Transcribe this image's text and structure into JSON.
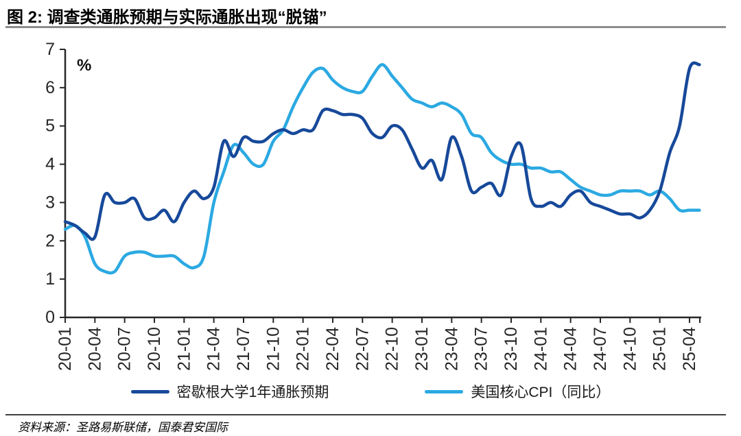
{
  "page": {
    "title": "图 2: 调查类通胀预期与实际通胀出现“脱锚”",
    "source_note": "资料来源：圣路易斯联储，国泰君安国际"
  },
  "chart_data": {
    "type": "line",
    "title": "调查类通胀预期与实际通胀出现“脱锚”",
    "unit_label": "%",
    "xlabel": "",
    "ylabel": "%",
    "ylim": [
      0,
      7
    ],
    "yticks": [
      0,
      1,
      2,
      3,
      4,
      5,
      6,
      7
    ],
    "grid": false,
    "legend_position": "bottom",
    "axis_color": "#262626",
    "x_start": "2020-01",
    "x_end": "2025-05",
    "x_tick_interval_months": 3,
    "x_tick_labels": [
      "20-01",
      "20-04",
      "20-07",
      "20-10",
      "21-01",
      "21-04",
      "21-07",
      "21-10",
      "22-01",
      "22-04",
      "22-07",
      "22-10",
      "23-01",
      "23-04",
      "23-07",
      "23-10",
      "24-01",
      "24-04",
      "24-07",
      "24-10",
      "25-01",
      "25-04"
    ],
    "series": [
      {
        "name": "密歇根大学1年通胀预期",
        "color": "#17499A",
        "values": [
          2.5,
          2.4,
          2.2,
          2.1,
          3.2,
          3.0,
          3.0,
          3.1,
          2.6,
          2.6,
          2.8,
          2.5,
          3.0,
          3.3,
          3.1,
          3.4,
          4.6,
          4.2,
          4.7,
          4.6,
          4.6,
          4.8,
          4.9,
          4.8,
          4.9,
          4.9,
          5.4,
          5.4,
          5.3,
          5.3,
          5.2,
          4.8,
          4.7,
          5.0,
          4.9,
          4.4,
          3.9,
          4.1,
          3.6,
          4.7,
          4.2,
          3.3,
          3.4,
          3.5,
          3.2,
          4.2,
          4.5,
          3.1,
          2.9,
          3.0,
          2.9,
          3.2,
          3.3,
          3.0,
          2.9,
          2.8,
          2.7,
          2.7,
          2.6,
          2.8,
          3.3,
          4.3,
          5.0,
          6.5,
          6.6
        ]
      },
      {
        "name": "美国核心CPI（同比）",
        "color": "#2BA9E2",
        "values": [
          2.3,
          2.4,
          2.1,
          1.4,
          1.2,
          1.2,
          1.6,
          1.7,
          1.7,
          1.6,
          1.6,
          1.6,
          1.4,
          1.3,
          1.6,
          3.0,
          3.8,
          4.5,
          4.3,
          4.0,
          4.0,
          4.6,
          4.9,
          5.5,
          6.0,
          6.4,
          6.5,
          6.2,
          6.0,
          5.9,
          5.9,
          6.3,
          6.6,
          6.3,
          6.0,
          5.7,
          5.6,
          5.5,
          5.6,
          5.5,
          5.3,
          4.8,
          4.7,
          4.3,
          4.1,
          4.0,
          4.0,
          3.9,
          3.9,
          3.8,
          3.8,
          3.6,
          3.4,
          3.3,
          3.2,
          3.2,
          3.3,
          3.3,
          3.3,
          3.2,
          3.3,
          3.1,
          2.8,
          2.8,
          2.8
        ]
      }
    ]
  }
}
